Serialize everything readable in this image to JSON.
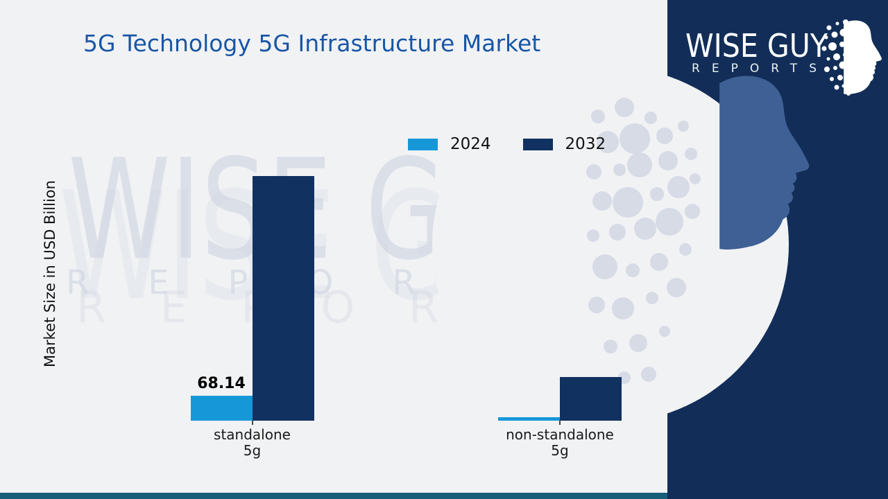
{
  "title": {
    "text": "5G Technology 5G Infrastructure Market"
  },
  "watermark": {
    "line1": "WISE GUY",
    "line2": "REPORTS"
  },
  "logo": {
    "line1": "WISE GUY",
    "line2": "REPORTS"
  },
  "colors": {
    "background": "#f1f2f4",
    "title_blue": "#1856a6",
    "series_2024_blue": "#1698d8",
    "series_2032_navy": "#113160",
    "panel_navy": "#122e58",
    "teal_strip": "#175e78"
  },
  "chart_data": {
    "type": "bar",
    "title": "5G Technology 5G Infrastructure Market",
    "xlabel": "",
    "ylabel": "Market Size in USD Billion",
    "categories": [
      "standalone 5g",
      "non-standalone 5g"
    ],
    "category_label_lines": [
      [
        "standalone",
        "5g"
      ],
      [
        "non-standalone",
        "5g"
      ]
    ],
    "series": [
      {
        "name": "2024",
        "color": "#1698d8",
        "values": [
          68.14,
          9.5
        ]
      },
      {
        "name": "2032",
        "color": "#113160",
        "values": [
          668,
          119
        ]
      }
    ],
    "data_labels": [
      {
        "series": "2024",
        "category": "standalone 5g",
        "text": "68.14"
      }
    ],
    "ylim": [
      0,
      700
    ],
    "grid": false,
    "legend_position": "top-center"
  }
}
